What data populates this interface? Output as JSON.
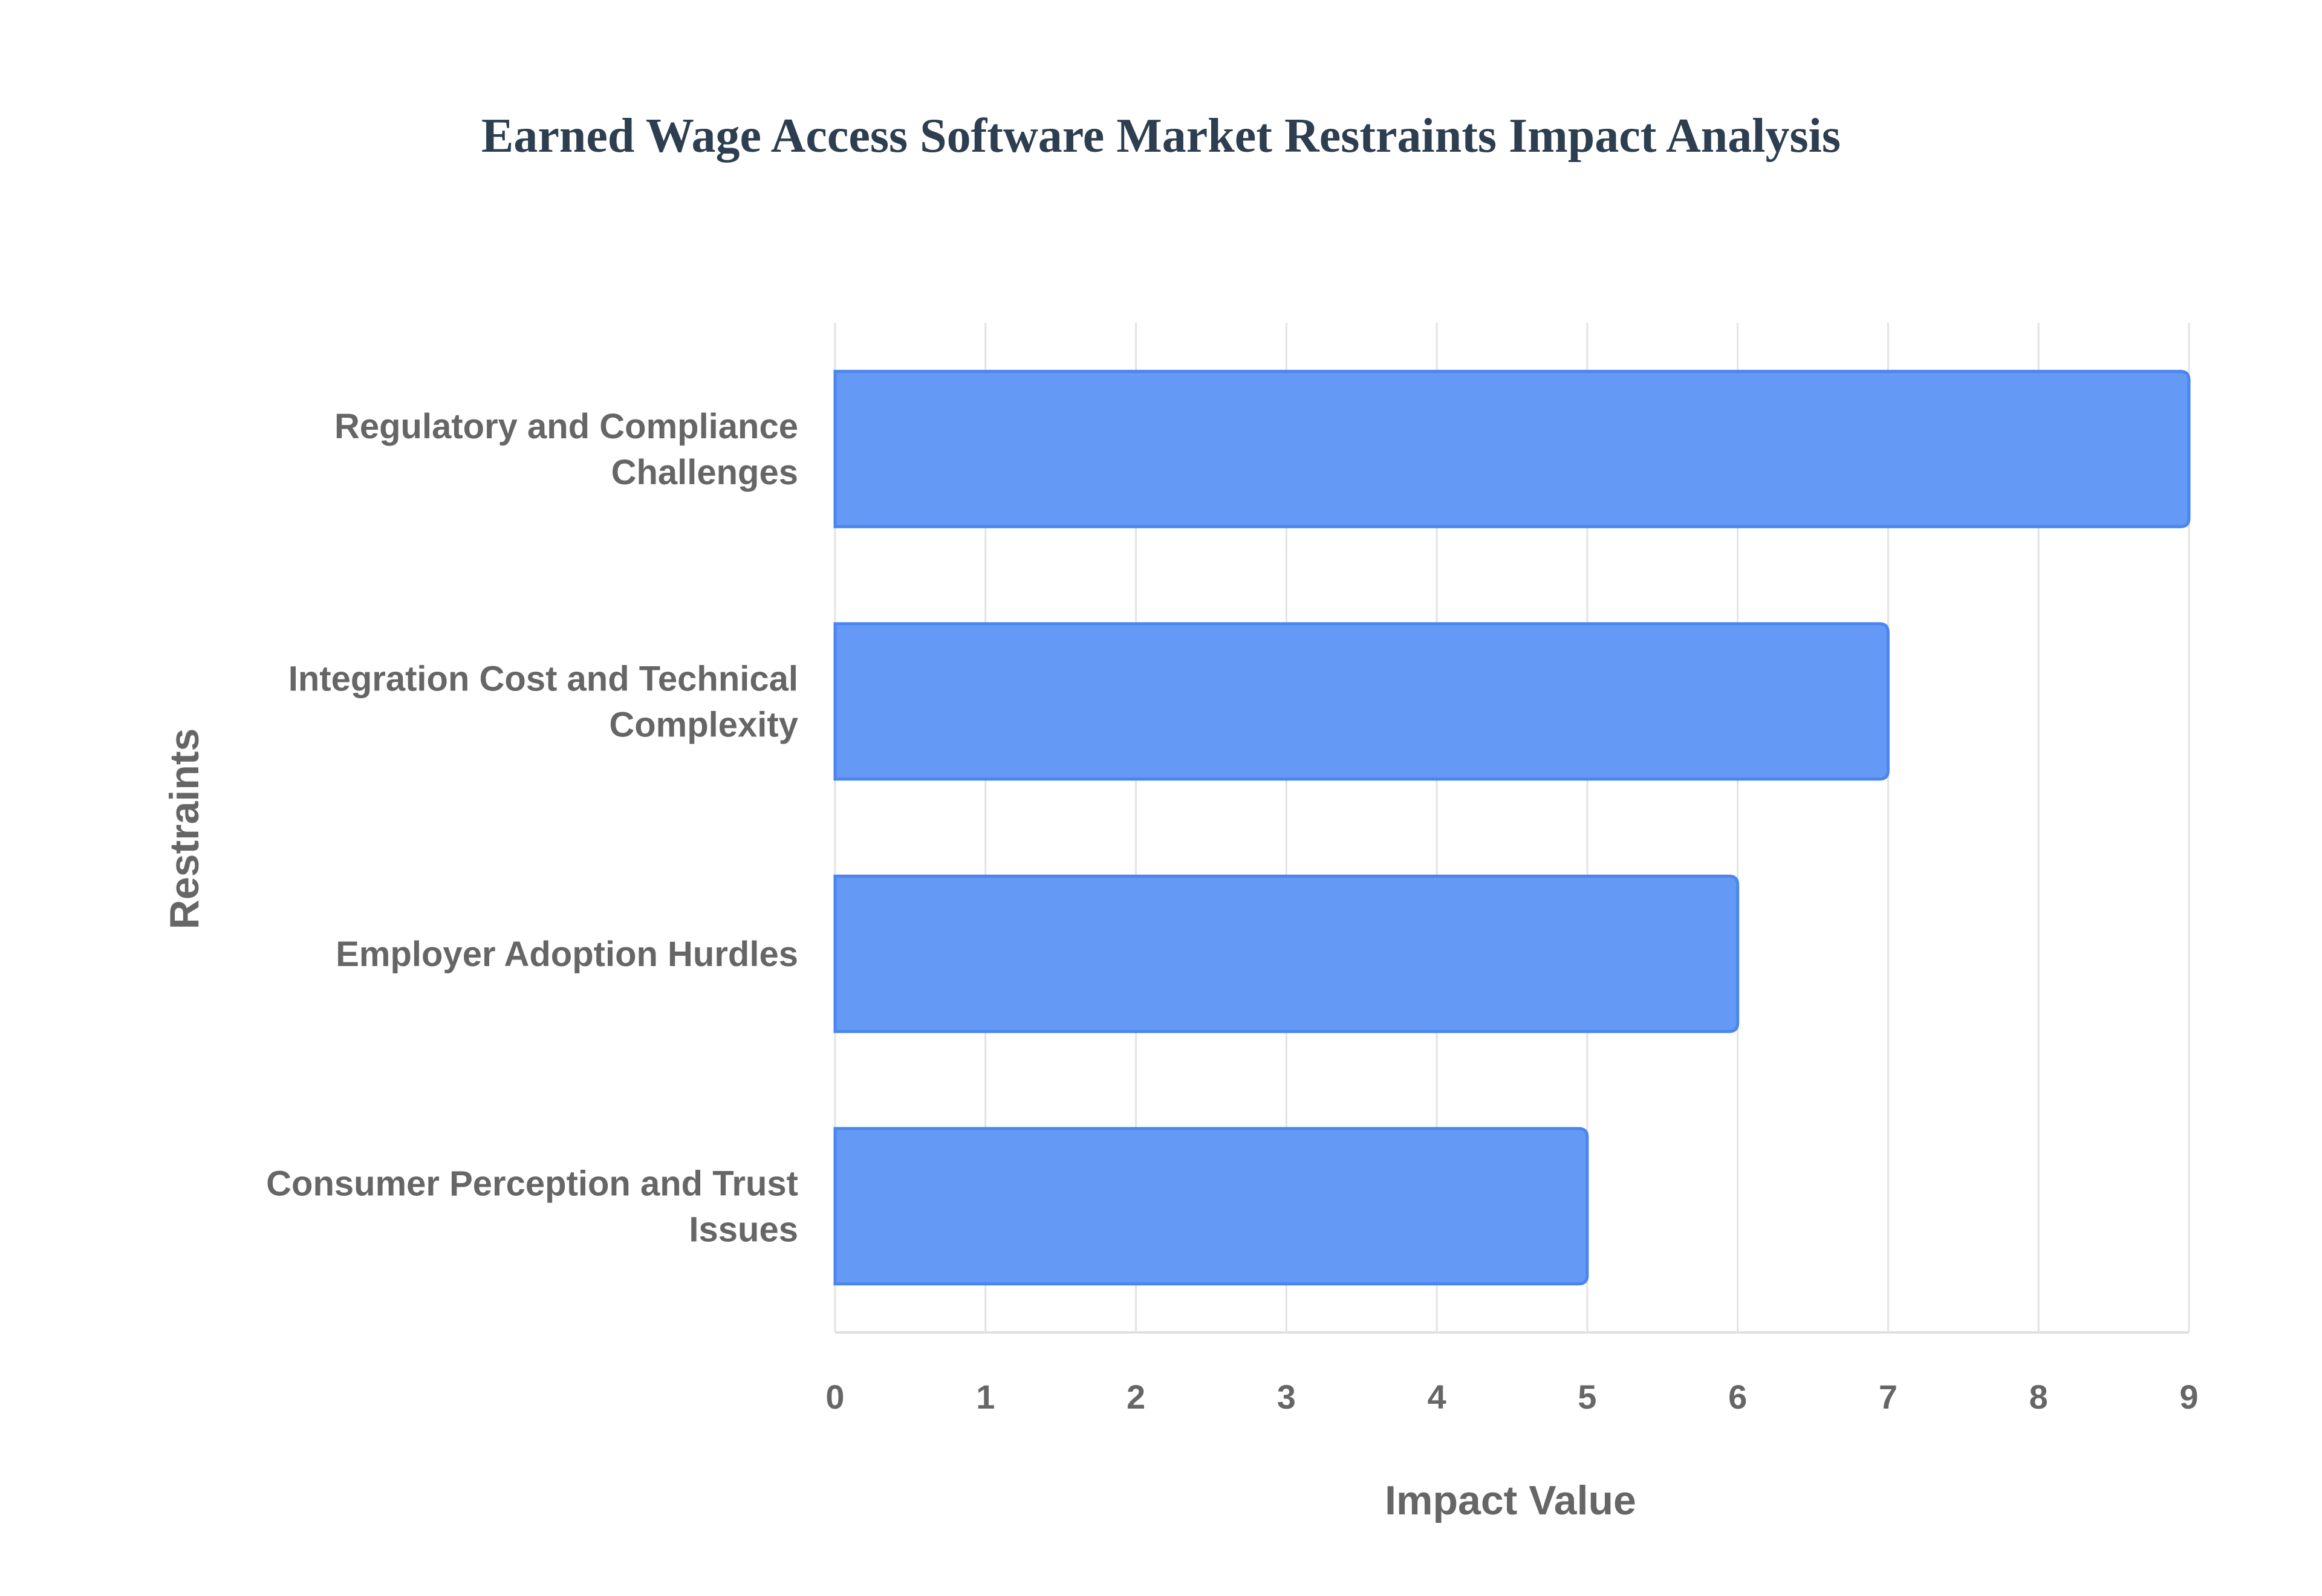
{
  "chart_data": {
    "type": "bar",
    "orientation": "horizontal",
    "title": "Earned Wage Access Software Market Restraints Impact Analysis",
    "xlabel": "Impact Value",
    "ylabel": "Restraints",
    "categories": [
      [
        "Regulatory and Compliance",
        "Challenges"
      ],
      [
        "Integration Cost and Technical",
        "Complexity"
      ],
      [
        "Employer Adoption Hurdles"
      ],
      [
        "Consumer Perception and Trust",
        "Issues"
      ]
    ],
    "values": [
      9,
      7,
      6,
      5
    ],
    "xlim": [
      0,
      9
    ],
    "xticks": [
      "0",
      "1",
      "2",
      "3",
      "4",
      "5",
      "6",
      "7",
      "8",
      "9"
    ],
    "grid": true,
    "legend": "none",
    "bar_color": "#6499f5",
    "bar_border_color": "#4a86ee"
  }
}
